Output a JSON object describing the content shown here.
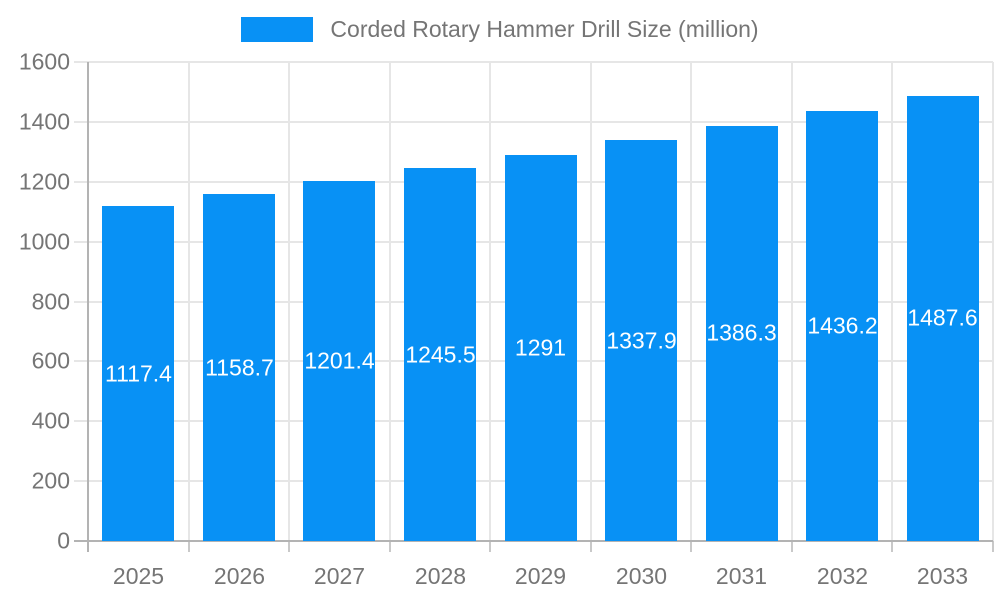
{
  "chart_data": {
    "type": "bar",
    "title": "",
    "legend_entries": [
      "Corded Rotary Hammer Drill Size (million)"
    ],
    "legend_position": "top",
    "categories": [
      "2025",
      "2026",
      "2027",
      "2028",
      "2029",
      "2030",
      "2031",
      "2032",
      "2033"
    ],
    "series": [
      {
        "name": "Corded Rotary Hammer Drill Size (million)",
        "values": [
          1117.4,
          1158.7,
          1201.4,
          1245.5,
          1291,
          1337.9,
          1386.3,
          1436.2,
          1487.6
        ],
        "value_labels": [
          "1117.4",
          "1158.7",
          "1201.4",
          "1245.5",
          "1291",
          "1337.9",
          "1386.3",
          "1436.2",
          "1487.6"
        ]
      }
    ],
    "xlabel": "",
    "ylabel": "",
    "ylim": [
      0,
      1600
    ],
    "ytick_interval": 200,
    "ytick_labels": [
      "0",
      "200",
      "400",
      "600",
      "800",
      "1000",
      "1200",
      "1400",
      "1600"
    ],
    "grid": true,
    "value_labels_position": "inside-center",
    "colors": {
      "bar": "#0891F5",
      "value_label": "#FFFFFF",
      "axis_text": "#757575",
      "legend_text": "#757575",
      "gridline": "#E6E6E6",
      "axis_line": "#B3B3B3",
      "minor_tick": "#C9C9C9",
      "background": "#FFFFFF"
    }
  }
}
